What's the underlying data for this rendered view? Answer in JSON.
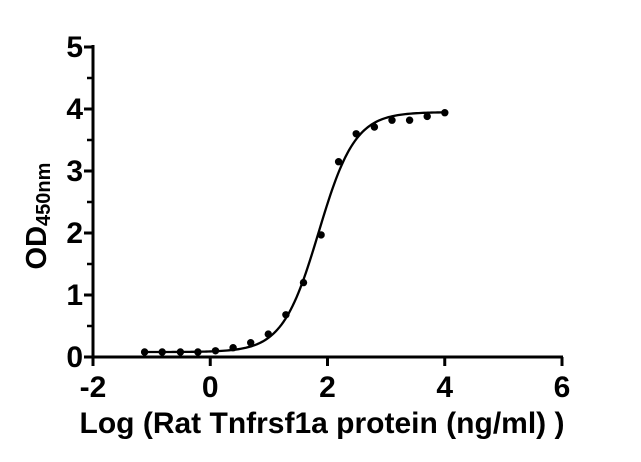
{
  "figure": {
    "background_color": "#ffffff",
    "ink_color": "#000000"
  },
  "chart_data": {
    "type": "scatter",
    "title": "",
    "xlabel": "Log (Rat Tnfrsf1a protein (ng/ml)  )",
    "ylabel_main": "OD",
    "ylabel_sub": "450nm",
    "xlim": [
      -2,
      6
    ],
    "ylim": [
      0,
      5
    ],
    "xticks": [
      -2,
      0,
      2,
      4,
      6
    ],
    "yticks": [
      0,
      1,
      2,
      3,
      4,
      5
    ],
    "y_minor_ticks": [
      0.5,
      1.5,
      2.5,
      3.5,
      4.5
    ],
    "grid": false,
    "legend": null,
    "marker": {
      "shape": "filled-circle",
      "color": "#000000",
      "radius_px": 3.7
    },
    "points": {
      "x": [
        -1.12,
        -0.82,
        -0.51,
        -0.21,
        0.09,
        0.39,
        0.69,
        0.99,
        1.29,
        1.59,
        1.89,
        2.19,
        2.49,
        2.8,
        3.1,
        3.4,
        3.7,
        4.0
      ],
      "od": [
        0.08,
        0.08,
        0.08,
        0.08,
        0.1,
        0.15,
        0.23,
        0.37,
        0.68,
        1.2,
        1.97,
        3.15,
        3.6,
        3.71,
        3.82,
        3.82,
        3.88,
        3.94
      ]
    },
    "fit_curve": {
      "model": "four_parameter_logistic",
      "bottom": 0.08,
      "top": 3.95,
      "log_ec50": 1.85,
      "hill_slope": 1.4,
      "x_range": [
        -1.12,
        4.0
      ]
    }
  }
}
